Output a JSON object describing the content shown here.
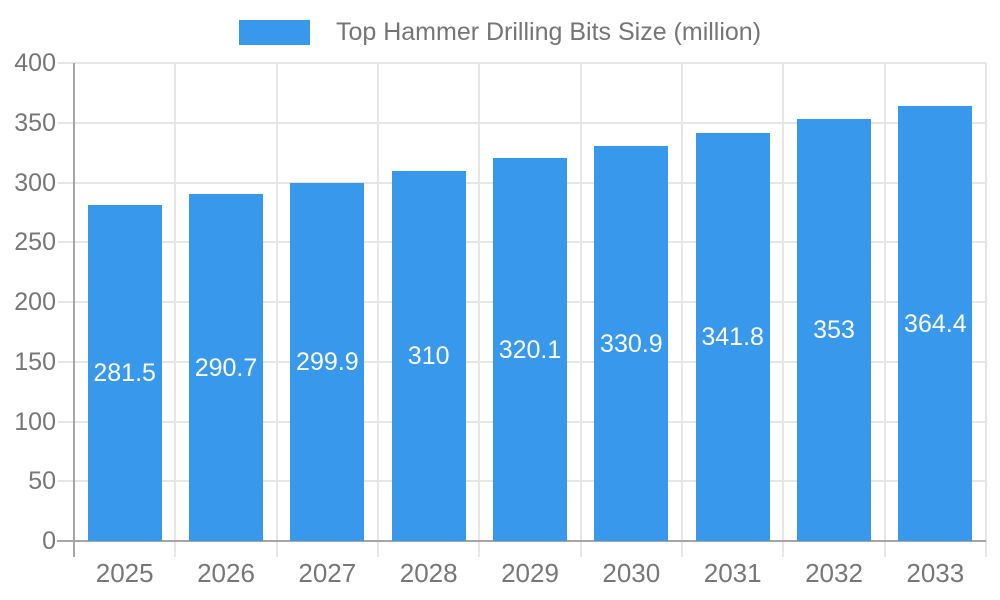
{
  "chart_data": {
    "type": "bar",
    "title": "Top Hammer Drilling Bits Size (million)",
    "legend_label": "Top Hammer Drilling Bits Size (million)",
    "legend_position": "top",
    "categories": [
      "2025",
      "2026",
      "2027",
      "2028",
      "2029",
      "2030",
      "2031",
      "2032",
      "2033"
    ],
    "values": [
      281.5,
      290.7,
      299.9,
      310,
      320.1,
      330.9,
      341.8,
      353,
      364.4
    ],
    "value_labels": [
      "281.5",
      "290.7",
      "299.9",
      "310",
      "320.1",
      "330.9",
      "341.8",
      "353",
      "364.4"
    ],
    "xlabel": "",
    "ylabel": "",
    "ylim": [
      0,
      400
    ],
    "y_ticks": [
      0,
      50,
      100,
      150,
      200,
      250,
      300,
      350,
      400
    ],
    "grid": true,
    "colors": {
      "bar": "#3899ec",
      "bar_label_text": "#ffffff",
      "tick_text": "#777777",
      "legend_text": "#757575",
      "gridline": "#e6e6e6",
      "axis_line": "#a6a6a6",
      "background": "#ffffff"
    }
  }
}
